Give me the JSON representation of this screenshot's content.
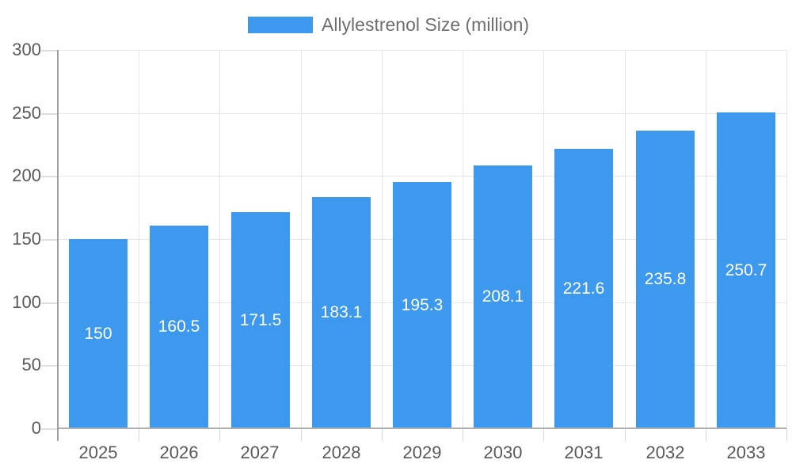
{
  "chart_data": {
    "type": "bar",
    "legend_label": "Allylestrenol Size (million)",
    "categories": [
      "2025",
      "2026",
      "2027",
      "2028",
      "2029",
      "2030",
      "2031",
      "2032",
      "2033"
    ],
    "values": [
      150,
      160.5,
      171.5,
      183.1,
      195.3,
      208.1,
      221.6,
      235.8,
      250.7
    ],
    "value_labels": [
      "150",
      "160.5",
      "171.5",
      "183.1",
      "195.3",
      "208.1",
      "221.6",
      "235.8",
      "250.7"
    ],
    "ylim": [
      0,
      300
    ],
    "yticks": [
      0,
      50,
      100,
      150,
      200,
      250,
      300
    ],
    "grid": "on",
    "legend_position": "top",
    "colors": {
      "bar": "#3C99EE",
      "gridline": "#e6e6e6",
      "axis_line": "#9e9e9e",
      "baseline": "#b0b0b0",
      "axis_label_text": "#595959",
      "legend_text": "#6e6e6e",
      "value_label_text": "#ffffff",
      "background": "#ffffff"
    }
  }
}
